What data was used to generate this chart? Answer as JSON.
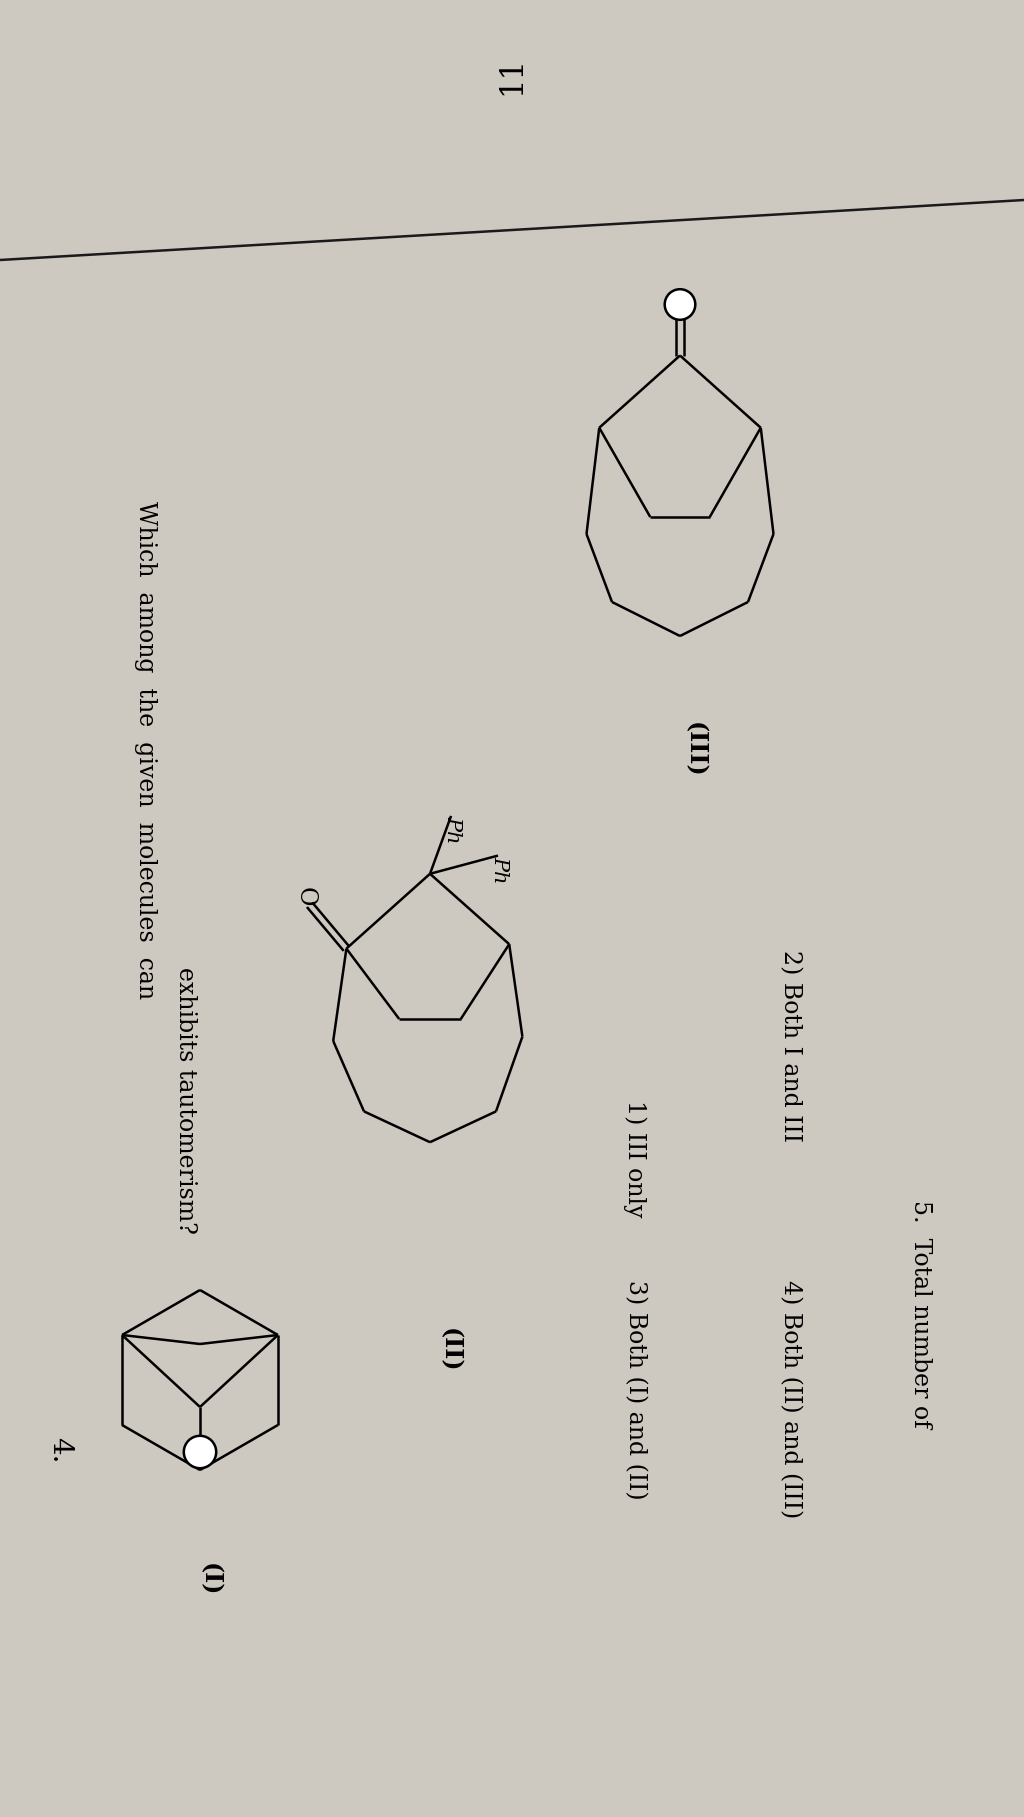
{
  "background_color": "#cdc8c0",
  "page_number": "11",
  "question_number": "4.",
  "question_line1": "Which among the  given  molecules  can",
  "question_line2": "exhibits tautomerism?",
  "options": [
    "1) III only",
    "2) Both I and III",
    "3) Both (I) and (II)",
    "4) Both (II) and (III)"
  ],
  "next_question_label": "5.",
  "next_question_text": "Total number of",
  "molecule_labels": [
    "(I)",
    "(II)",
    "(III)"
  ],
  "lw": 1.8,
  "separator_line_color": "#222222"
}
